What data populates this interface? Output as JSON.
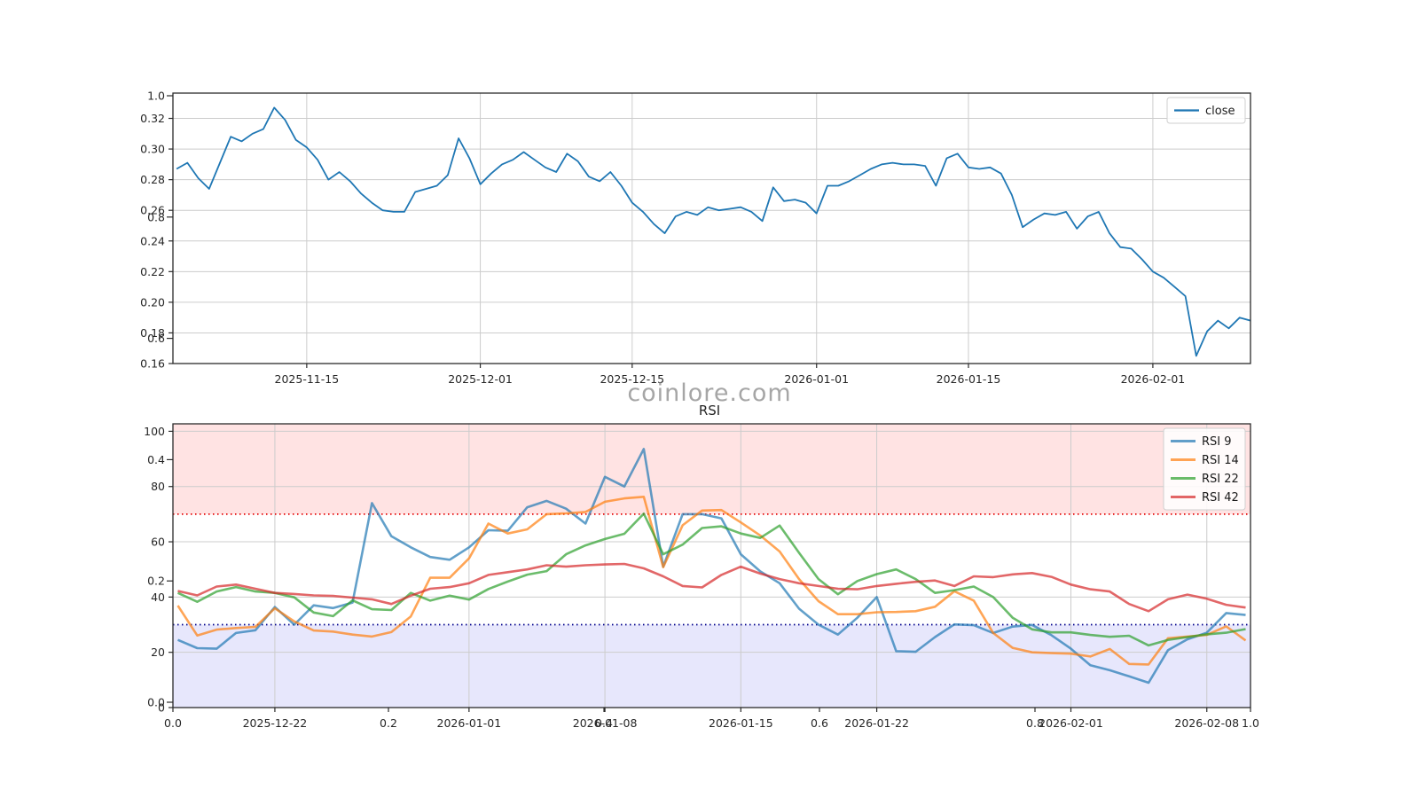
{
  "page": {
    "background": "#ffffff"
  },
  "watermark": {
    "text": "coinlore.com",
    "color": "#a6a6a6"
  },
  "rsi_title": {
    "text": "RSI"
  },
  "overlay_axis": {
    "y_labels": [
      "1.0",
      "0.8",
      "0.6",
      "0.4",
      "0.2",
      "0.0"
    ],
    "x_labels": [
      "0.0",
      "0.2",
      "0.4",
      "0.6",
      "0.8",
      "1.0"
    ]
  },
  "chart_data": [
    {
      "id": "price",
      "type": "line",
      "title": "",
      "xlabel": "",
      "ylabel": "",
      "grid": true,
      "legend_position": "upper right",
      "legend_entries": [
        "close"
      ],
      "x_start": "2025-11-03",
      "x_interval_days": 1,
      "xlim": [
        "2025-11-02T16:00:00",
        "2026-02-10T00:00:00"
      ],
      "ylim": [
        0.16,
        0.3365
      ],
      "yticks": [
        0.16,
        0.18,
        0.2,
        0.22,
        0.24,
        0.26,
        0.28,
        0.3,
        0.32
      ],
      "ytick_decimals": 2,
      "xticks": [
        {
          "date": "2025-11-15",
          "label": "2025-11-15"
        },
        {
          "date": "2025-12-01",
          "label": "2025-12-01"
        },
        {
          "date": "2025-12-15",
          "label": "2025-12-15"
        },
        {
          "date": "2026-01-01",
          "label": "2026-01-01"
        },
        {
          "date": "2026-01-15",
          "label": "2026-01-15"
        },
        {
          "date": "2026-02-01",
          "label": "2026-02-01"
        }
      ],
      "series": [
        {
          "name": "close",
          "color": "#1f77b4",
          "alpha": 1,
          "width": 1.8,
          "values": [
            0.287,
            0.291,
            0.281,
            0.274,
            0.291,
            0.308,
            0.305,
            0.31,
            0.313,
            0.327,
            0.319,
            0.306,
            0.301,
            0.293,
            0.28,
            0.285,
            0.279,
            0.271,
            0.265,
            0.26,
            0.259,
            0.259,
            0.272,
            0.274,
            0.276,
            0.283,
            0.307,
            0.294,
            0.277,
            0.284,
            0.29,
            0.293,
            0.298,
            0.293,
            0.288,
            0.285,
            0.297,
            0.292,
            0.282,
            0.279,
            0.285,
            0.276,
            0.265,
            0.259,
            0.251,
            0.245,
            0.256,
            0.259,
            0.257,
            0.262,
            0.26,
            0.261,
            0.262,
            0.259,
            0.253,
            0.275,
            0.266,
            0.267,
            0.265,
            0.258,
            0.276,
            0.276,
            0.279,
            0.283,
            0.287,
            0.29,
            0.291,
            0.29,
            0.29,
            0.289,
            0.276,
            0.294,
            0.297,
            0.288,
            0.287,
            0.288,
            0.284,
            0.27,
            0.249,
            0.254,
            0.258,
            0.257,
            0.259,
            0.248,
            0.256,
            0.259,
            0.245,
            0.236,
            0.235,
            0.228,
            0.22,
            0.216,
            0.21,
            0.204,
            0.165,
            0.181,
            0.188,
            0.183,
            0.19,
            0.188
          ]
        }
      ]
    },
    {
      "id": "rsi",
      "type": "line",
      "title": "RSI",
      "xlabel": "",
      "ylabel": "",
      "grid": true,
      "legend_position": "upper right",
      "legend_entries": [
        "RSI 9",
        "RSI 14",
        "RSI 22",
        "RSI 42"
      ],
      "x_start": "2025-12-17",
      "x_interval_days": 1,
      "xlim": [
        "2025-12-16T18:00:00",
        "2026-02-10T06:00:00"
      ],
      "ylim": [
        0,
        102.7
      ],
      "yticks": [
        0,
        20,
        40,
        60,
        80,
        100
      ],
      "ytick_decimals": 0,
      "xticks": [
        {
          "date": "2025-12-22",
          "label": "2025-12-22"
        },
        {
          "date": "2026-01-01",
          "label": "2026-01-01"
        },
        {
          "date": "2026-01-08",
          "label": "2026-01-08"
        },
        {
          "date": "2026-01-15",
          "label": "2026-01-15"
        },
        {
          "date": "2026-01-22",
          "label": "2026-01-22"
        },
        {
          "date": "2026-02-01",
          "label": "2026-02-01"
        },
        {
          "date": "2026-02-08",
          "label": "2026-02-08"
        }
      ],
      "bands": [
        {
          "from": 70,
          "to": 102.7,
          "color": "rgba(255,60,60,0.14)",
          "meaning": "overbought"
        },
        {
          "from": 0,
          "to": 30,
          "color": "rgba(70,70,230,0.13)",
          "meaning": "oversold"
        }
      ],
      "hlines": [
        {
          "y": 70,
          "color": "#e50000",
          "style": "dotted"
        },
        {
          "y": 30,
          "color": "#00008b",
          "style": "dotted"
        }
      ],
      "series": [
        {
          "name": "RSI 9",
          "color": "#1f77b4",
          "alpha": 0.7,
          "width": 2.6,
          "values": [
            24.5,
            21.5,
            21.3,
            27,
            28,
            36.4,
            30,
            37,
            36,
            38,
            74,
            62,
            58,
            54.5,
            53.5,
            58,
            64.2,
            64,
            72.5,
            74.8,
            72,
            66.6,
            83.5,
            80,
            93.6,
            51,
            70,
            70,
            68.5,
            55.5,
            49.3,
            45,
            35.8,
            30,
            26.4,
            32.5,
            40,
            20.4,
            20.2,
            25.5,
            30.1,
            29.8,
            27,
            29.3,
            29.9,
            26.2,
            21.3,
            15.3,
            13.5,
            11.3,
            9,
            20.8,
            24.7,
            27.1,
            34.2,
            33.5
          ]
        },
        {
          "name": "RSI 14",
          "color": "#ff7f0e",
          "alpha": 0.7,
          "width": 2.6,
          "values": [
            36.9,
            26.1,
            28.2,
            28.8,
            29.2,
            35.9,
            31.2,
            27.9,
            27.5,
            26.4,
            25.7,
            27.3,
            33,
            47,
            47,
            54,
            66.6,
            63,
            64.5,
            70,
            70.3,
            70.8,
            74.5,
            75.7,
            76.3,
            50.8,
            66,
            71.3,
            71.5,
            67,
            62.3,
            56.5,
            46.5,
            38.5,
            33.8,
            33.8,
            34.5,
            34.6,
            34.9,
            36.5,
            42.1,
            38.7,
            27,
            21.6,
            20,
            19.7,
            19.5,
            18.5,
            21.2,
            15.8,
            15.6,
            25.1,
            25.7,
            26.3,
            29.4,
            24.3
          ]
        },
        {
          "name": "RSI 22",
          "color": "#2ca02c",
          "alpha": 0.7,
          "width": 2.6,
          "values": [
            41.5,
            38.3,
            42,
            43.6,
            42,
            41.5,
            39.9,
            34.4,
            33.1,
            38.8,
            35.6,
            35.3,
            41.5,
            38.7,
            40.5,
            39.1,
            42.9,
            45.6,
            48.1,
            49.4,
            55.5,
            58.7,
            61,
            62.9,
            70.2,
            55.5,
            59,
            65,
            65.6,
            63,
            61.4,
            65.9,
            56,
            46.5,
            41,
            45.8,
            48.3,
            50,
            46.5,
            41.5,
            42.5,
            43.8,
            40,
            32.5,
            28.3,
            27.2,
            27.2,
            26.3,
            25.6,
            26,
            22.5,
            24.5,
            25.5,
            26.5,
            27.1,
            28.4
          ]
        },
        {
          "name": "RSI 42",
          "color": "#d62728",
          "alpha": 0.7,
          "width": 2.6,
          "values": [
            42.2,
            40.6,
            43.8,
            44.5,
            43,
            41.5,
            41.1,
            40.6,
            40.4,
            39.8,
            39.2,
            37.5,
            40.5,
            43,
            43.6,
            45,
            48,
            49,
            50,
            51.5,
            51,
            51.5,
            51.8,
            52,
            50.4,
            47.5,
            44,
            43.5,
            48,
            51,
            48.5,
            46.5,
            45,
            44,
            43,
            42.8,
            44,
            44.8,
            45.5,
            46,
            44,
            47.5,
            47.2,
            48.2,
            48.7,
            47.3,
            44.5,
            42.8,
            42,
            37.5,
            34.9,
            39.2,
            40.9,
            39.4,
            37.2,
            36.2
          ]
        }
      ]
    }
  ]
}
